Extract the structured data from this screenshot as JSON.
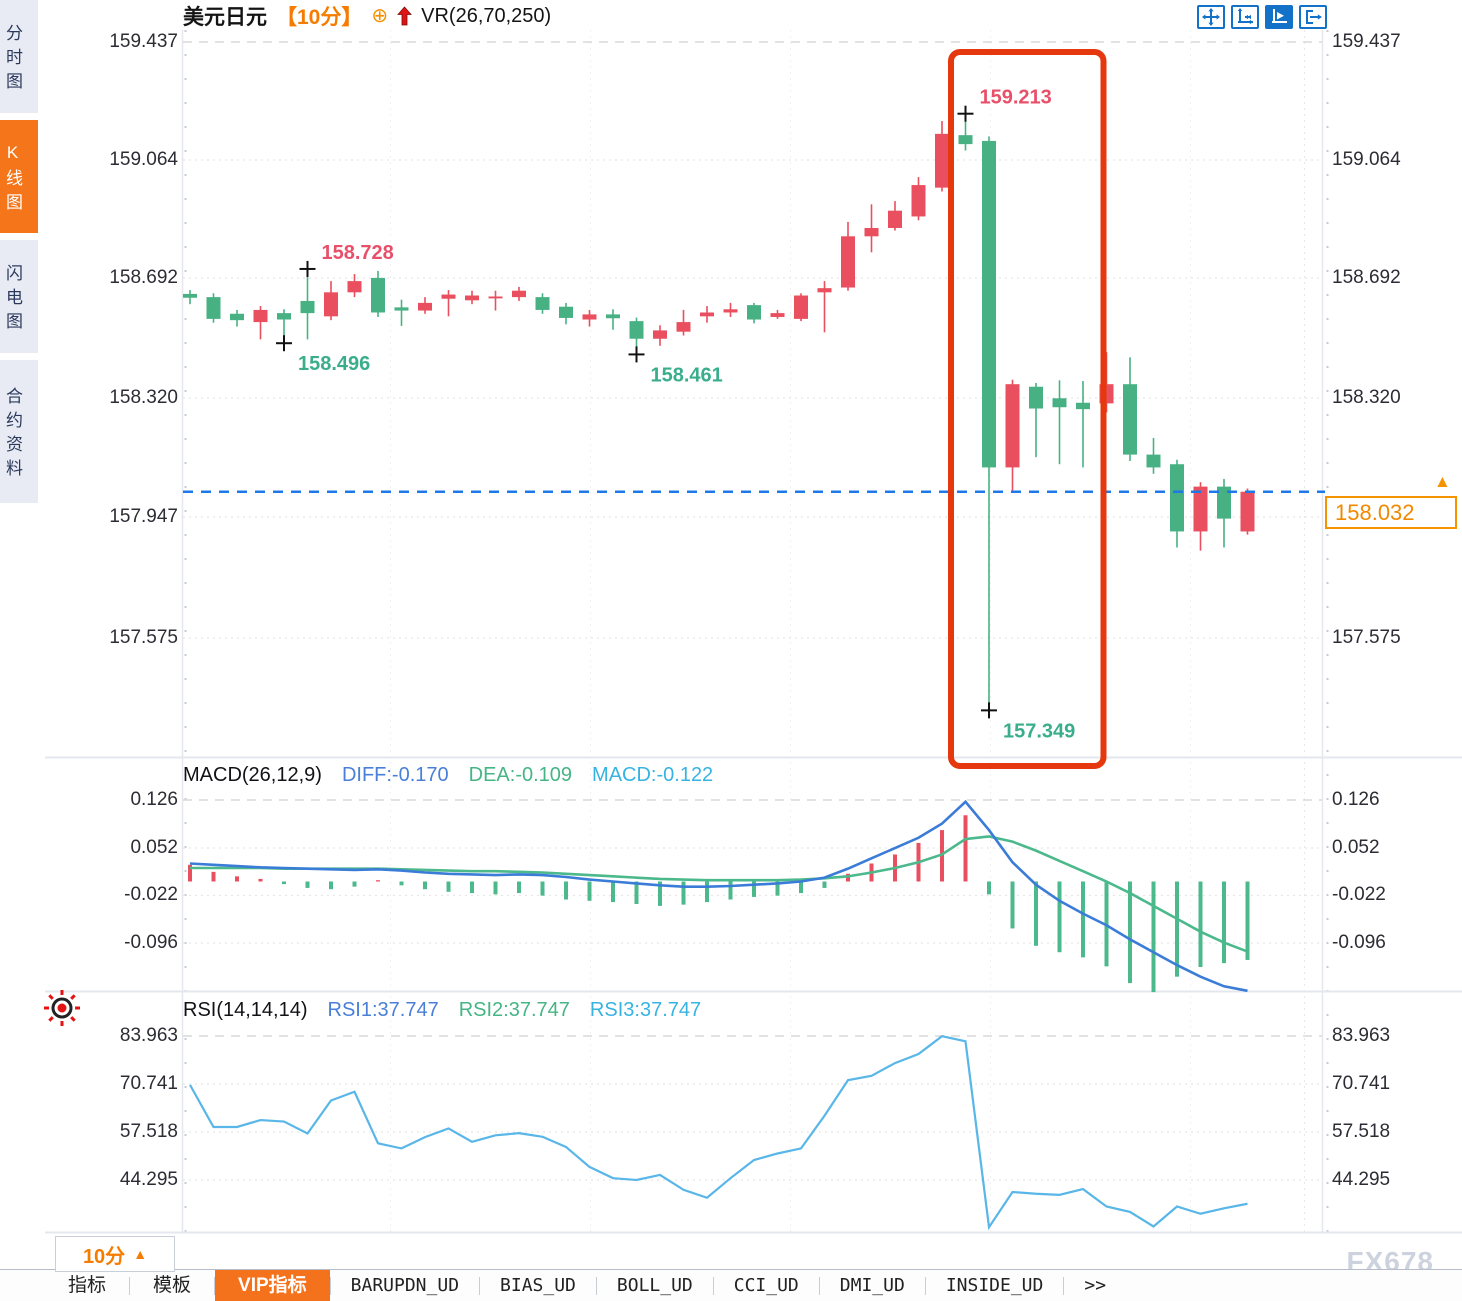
{
  "header": {
    "symbol": "美元日元",
    "period_tag": "【10分】",
    "plus_badge": "⊕",
    "indicator": "VR(26,70,250)"
  },
  "sidebar": {
    "items": [
      {
        "label": "分时图",
        "active": false
      },
      {
        "label": "K线图",
        "active": true
      },
      {
        "label": "闪电图",
        "active": false
      },
      {
        "label": "合约资料",
        "active": false
      }
    ]
  },
  "toolbar": {
    "icons": [
      "pan-move-icon",
      "axis-scale-icon",
      "auto-scroll-icon",
      "export-icon"
    ]
  },
  "axes": {
    "main_left": [
      "159.437",
      "159.064",
      "158.692",
      "158.320",
      "157.947",
      "157.575"
    ],
    "main_right": [
      "159.437",
      "159.064",
      "158.692",
      "158.320",
      "157.575"
    ],
    "macd_left": [
      "0.126",
      "0.052",
      "-0.022",
      "-0.096"
    ],
    "macd_right": [
      "0.126",
      "0.052",
      "-0.022",
      "-0.096"
    ],
    "rsi_left": [
      "83.963",
      "70.741",
      "57.518",
      "44.295"
    ],
    "rsi_right": [
      "83.963",
      "70.741",
      "57.518",
      "44.295"
    ]
  },
  "macd_header": {
    "title": "MACD(26,12,9)",
    "diff": "DIFF:-0.170",
    "dea": "DEA:-0.109",
    "macd": "MACD:-0.122"
  },
  "rsi_header": {
    "title": "RSI(14,14,14)",
    "rsi1": "RSI1:37.747",
    "rsi2": "RSI2:37.747",
    "rsi3": "RSI3:37.747"
  },
  "price_marker": {
    "value": "158.032",
    "arrow": "▲"
  },
  "period_selector": {
    "label": "10分",
    "arrow": "▲"
  },
  "bottom_tabs": [
    {
      "label": "指标",
      "active": false,
      "mono": false
    },
    {
      "label": "模板",
      "active": false,
      "mono": false
    },
    {
      "label": "VIP指标",
      "active": true,
      "mono": false
    },
    {
      "label": "BARUPDN_UD",
      "active": false,
      "mono": true
    },
    {
      "label": "BIAS_UD",
      "active": false,
      "mono": true
    },
    {
      "label": "BOLL_UD",
      "active": false,
      "mono": true
    },
    {
      "label": "CCI_UD",
      "active": false,
      "mono": true
    },
    {
      "label": "DMI_UD",
      "active": false,
      "mono": true
    },
    {
      "label": "INSIDE_UD",
      "active": false,
      "mono": true
    },
    {
      "label": ">>",
      "active": false,
      "mono": true
    }
  ],
  "watermark": "FX678",
  "colors": {
    "up": "#e94f5e",
    "down": "#47b183",
    "diff_line": "#3a7cd8",
    "dea_line": "#4cb98c",
    "rsi_line": "#58b6e8",
    "price_line": "#1d78e8",
    "highlight_box": "#e5380f",
    "accent_orange": "#f57c00",
    "high_label": "#e8506a",
    "low_label": "#3aae8c"
  },
  "chart_data": [
    {
      "type": "candlestick",
      "title": "美元日元 10分 K线图",
      "ohlc_format": "[open,high,low,close]",
      "y_ticks": [
        159.437,
        159.064,
        158.692,
        158.32,
        157.947,
        157.575
      ],
      "current_price": 158.032,
      "candles": [
        [
          158.65,
          158.662,
          158.618,
          158.638
        ],
        [
          158.64,
          158.652,
          158.56,
          158.572
        ],
        [
          158.588,
          158.6,
          158.548,
          158.568
        ],
        [
          158.562,
          158.612,
          158.508,
          158.6
        ],
        [
          158.59,
          158.602,
          158.496,
          158.57
        ],
        [
          158.628,
          158.728,
          158.508,
          158.59
        ],
        [
          158.58,
          158.69,
          158.568,
          158.655
        ],
        [
          158.655,
          158.712,
          158.64,
          158.69
        ],
        [
          158.7,
          158.722,
          158.578,
          158.592
        ],
        [
          158.608,
          158.632,
          158.55,
          158.598
        ],
        [
          158.598,
          158.64,
          158.588,
          158.622
        ],
        [
          158.635,
          158.662,
          158.58,
          158.648
        ],
        [
          158.63,
          158.66,
          158.618,
          158.645
        ],
        [
          158.636,
          158.66,
          158.598,
          158.642
        ],
        [
          158.64,
          158.672,
          158.628,
          158.66
        ],
        [
          158.64,
          158.652,
          158.588,
          158.6
        ],
        [
          158.61,
          158.622,
          158.555,
          158.575
        ],
        [
          158.57,
          158.6,
          158.548,
          158.586
        ],
        [
          158.586,
          158.602,
          158.538,
          158.574
        ],
        [
          158.565,
          158.576,
          158.461,
          158.51
        ],
        [
          158.51,
          158.552,
          158.488,
          158.536
        ],
        [
          158.532,
          158.6,
          158.52,
          158.562
        ],
        [
          158.58,
          158.612,
          158.56,
          158.592
        ],
        [
          158.592,
          158.622,
          158.578,
          158.602
        ],
        [
          158.615,
          158.622,
          158.558,
          158.57
        ],
        [
          158.578,
          158.6,
          158.572,
          158.59
        ],
        [
          158.572,
          158.652,
          158.565,
          158.645
        ],
        [
          158.655,
          158.69,
          158.53,
          158.668
        ],
        [
          158.67,
          158.875,
          158.66,
          158.83
        ],
        [
          158.83,
          158.93,
          158.78,
          158.856
        ],
        [
          158.856,
          158.94,
          158.848,
          158.91
        ],
        [
          158.892,
          159.015,
          158.88,
          158.99
        ],
        [
          158.982,
          159.19,
          158.97,
          159.15
        ],
        [
          159.146,
          159.213,
          159.098,
          159.118
        ],
        [
          159.128,
          159.142,
          157.349,
          158.108
        ],
        [
          158.108,
          158.382,
          158.028,
          158.368
        ],
        [
          158.36,
          158.372,
          158.14,
          158.292
        ],
        [
          158.324,
          158.38,
          158.118,
          158.296
        ],
        [
          158.31,
          158.378,
          158.108,
          158.29
        ],
        [
          158.308,
          158.468,
          158.28,
          158.368
        ],
        [
          158.368,
          158.452,
          158.128,
          158.148
        ],
        [
          158.148,
          158.2,
          158.088,
          158.108
        ],
        [
          158.118,
          158.132,
          157.858,
          157.908
        ],
        [
          157.908,
          158.062,
          157.848,
          158.048
        ],
        [
          158.048,
          158.072,
          157.858,
          157.948
        ],
        [
          157.908,
          158.042,
          157.898,
          158.032
        ]
      ],
      "annotations": [
        {
          "candle": 5,
          "price": 158.728,
          "side": "high",
          "label": "158.728"
        },
        {
          "candle": 4,
          "price": 158.496,
          "side": "low",
          "label": "158.496"
        },
        {
          "candle": 19,
          "price": 158.461,
          "side": "low",
          "label": "158.461"
        },
        {
          "candle": 33,
          "price": 159.213,
          "side": "high",
          "label": "159.213"
        },
        {
          "candle": 34,
          "price": 157.349,
          "side": "low",
          "label": "157.349"
        }
      ],
      "highlight_box": {
        "from_candle": 32,
        "to_candle": 39
      }
    },
    {
      "type": "macd",
      "params": "(26,12,9)",
      "y_ticks": [
        0.126,
        0.052,
        -0.022,
        -0.096
      ],
      "diff": [
        0.028,
        0.026,
        0.024,
        0.022,
        0.021,
        0.02,
        0.019,
        0.018,
        0.019,
        0.017,
        0.014,
        0.012,
        0.011,
        0.01,
        0.011,
        0.01,
        0.007,
        0.003,
        0.0,
        -0.003,
        -0.006,
        -0.008,
        -0.008,
        -0.007,
        -0.005,
        -0.003,
        0.0,
        0.006,
        0.02,
        0.036,
        0.052,
        0.068,
        0.09,
        0.124,
        0.08,
        0.03,
        -0.005,
        -0.03,
        -0.05,
        -0.068,
        -0.09,
        -0.11,
        -0.13,
        -0.148,
        -0.163,
        -0.17
      ],
      "dea": [
        0.021,
        0.021,
        0.021,
        0.021,
        0.02,
        0.02,
        0.02,
        0.02,
        0.02,
        0.019,
        0.018,
        0.017,
        0.016,
        0.016,
        0.015,
        0.014,
        0.012,
        0.01,
        0.008,
        0.006,
        0.004,
        0.003,
        0.002,
        0.002,
        0.002,
        0.002,
        0.003,
        0.005,
        0.008,
        0.014,
        0.021,
        0.03,
        0.042,
        0.066,
        0.07,
        0.062,
        0.048,
        0.032,
        0.016,
        0.0,
        -0.018,
        -0.038,
        -0.058,
        -0.078,
        -0.095,
        -0.109
      ],
      "hist": [
        0.026,
        0.015,
        0.008,
        0.004,
        -0.004,
        -0.01,
        -0.012,
        -0.008,
        0.002,
        -0.006,
        -0.012,
        -0.016,
        -0.018,
        -0.02,
        -0.018,
        -0.022,
        -0.028,
        -0.03,
        -0.032,
        -0.035,
        -0.038,
        -0.036,
        -0.032,
        -0.028,
        -0.024,
        -0.022,
        -0.018,
        -0.01,
        0.012,
        0.028,
        0.042,
        0.06,
        0.08,
        0.103,
        -0.02,
        -0.073,
        -0.1,
        -0.11,
        -0.118,
        -0.132,
        -0.158,
        -0.172,
        -0.148,
        -0.133,
        -0.127,
        -0.122
      ]
    },
    {
      "type": "rsi",
      "params": "(14,14,14)",
      "y_ticks": [
        83.963,
        70.741,
        57.518,
        44.295
      ],
      "values": [
        70.5,
        58.9,
        58.9,
        60.8,
        60.4,
        57.1,
        66.2,
        68.6,
        54.4,
        53.0,
        56.1,
        58.5,
        54.8,
        56.6,
        57.2,
        56.2,
        53.4,
        47.9,
        44.8,
        44.3,
        45.7,
        41.6,
        39.4,
        44.8,
        49.8,
        51.6,
        53.0,
        62.0,
        71.8,
        73.0,
        76.5,
        79.0,
        83.9,
        82.5,
        31.3,
        41.0,
        40.5,
        40.2,
        41.8,
        37.0,
        35.5,
        31.5,
        37.0,
        35.0,
        36.5,
        37.75
      ]
    }
  ]
}
